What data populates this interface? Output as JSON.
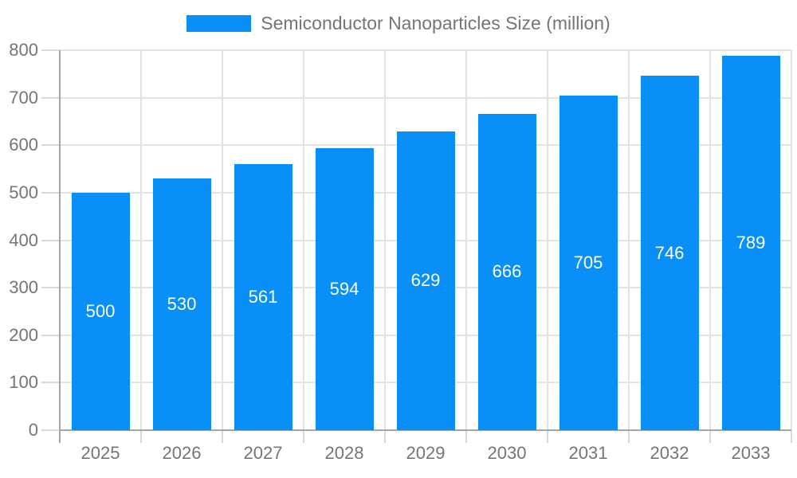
{
  "chart_data": {
    "type": "bar",
    "title": "Semiconductor Nanoparticles Size (million)",
    "legend_position": "top",
    "categories": [
      "2025",
      "2026",
      "2027",
      "2028",
      "2029",
      "2030",
      "2031",
      "2032",
      "2033"
    ],
    "values": [
      500,
      530,
      561,
      594,
      629,
      666,
      705,
      746,
      789
    ],
    "xlabel": "",
    "ylabel": "",
    "ylim": [
      0,
      800
    ],
    "yticks": [
      0,
      100,
      200,
      300,
      400,
      500,
      600,
      700,
      800
    ],
    "grid": true,
    "bar_labels_inside": true,
    "colors": {
      "bar": "#0890F8",
      "bar_label_text": "#FFFFFF",
      "axis_line": "#A6A6A6",
      "gridline": "#E3E3E3",
      "tick": "#D9D9D9",
      "label_text": "#757575"
    }
  }
}
